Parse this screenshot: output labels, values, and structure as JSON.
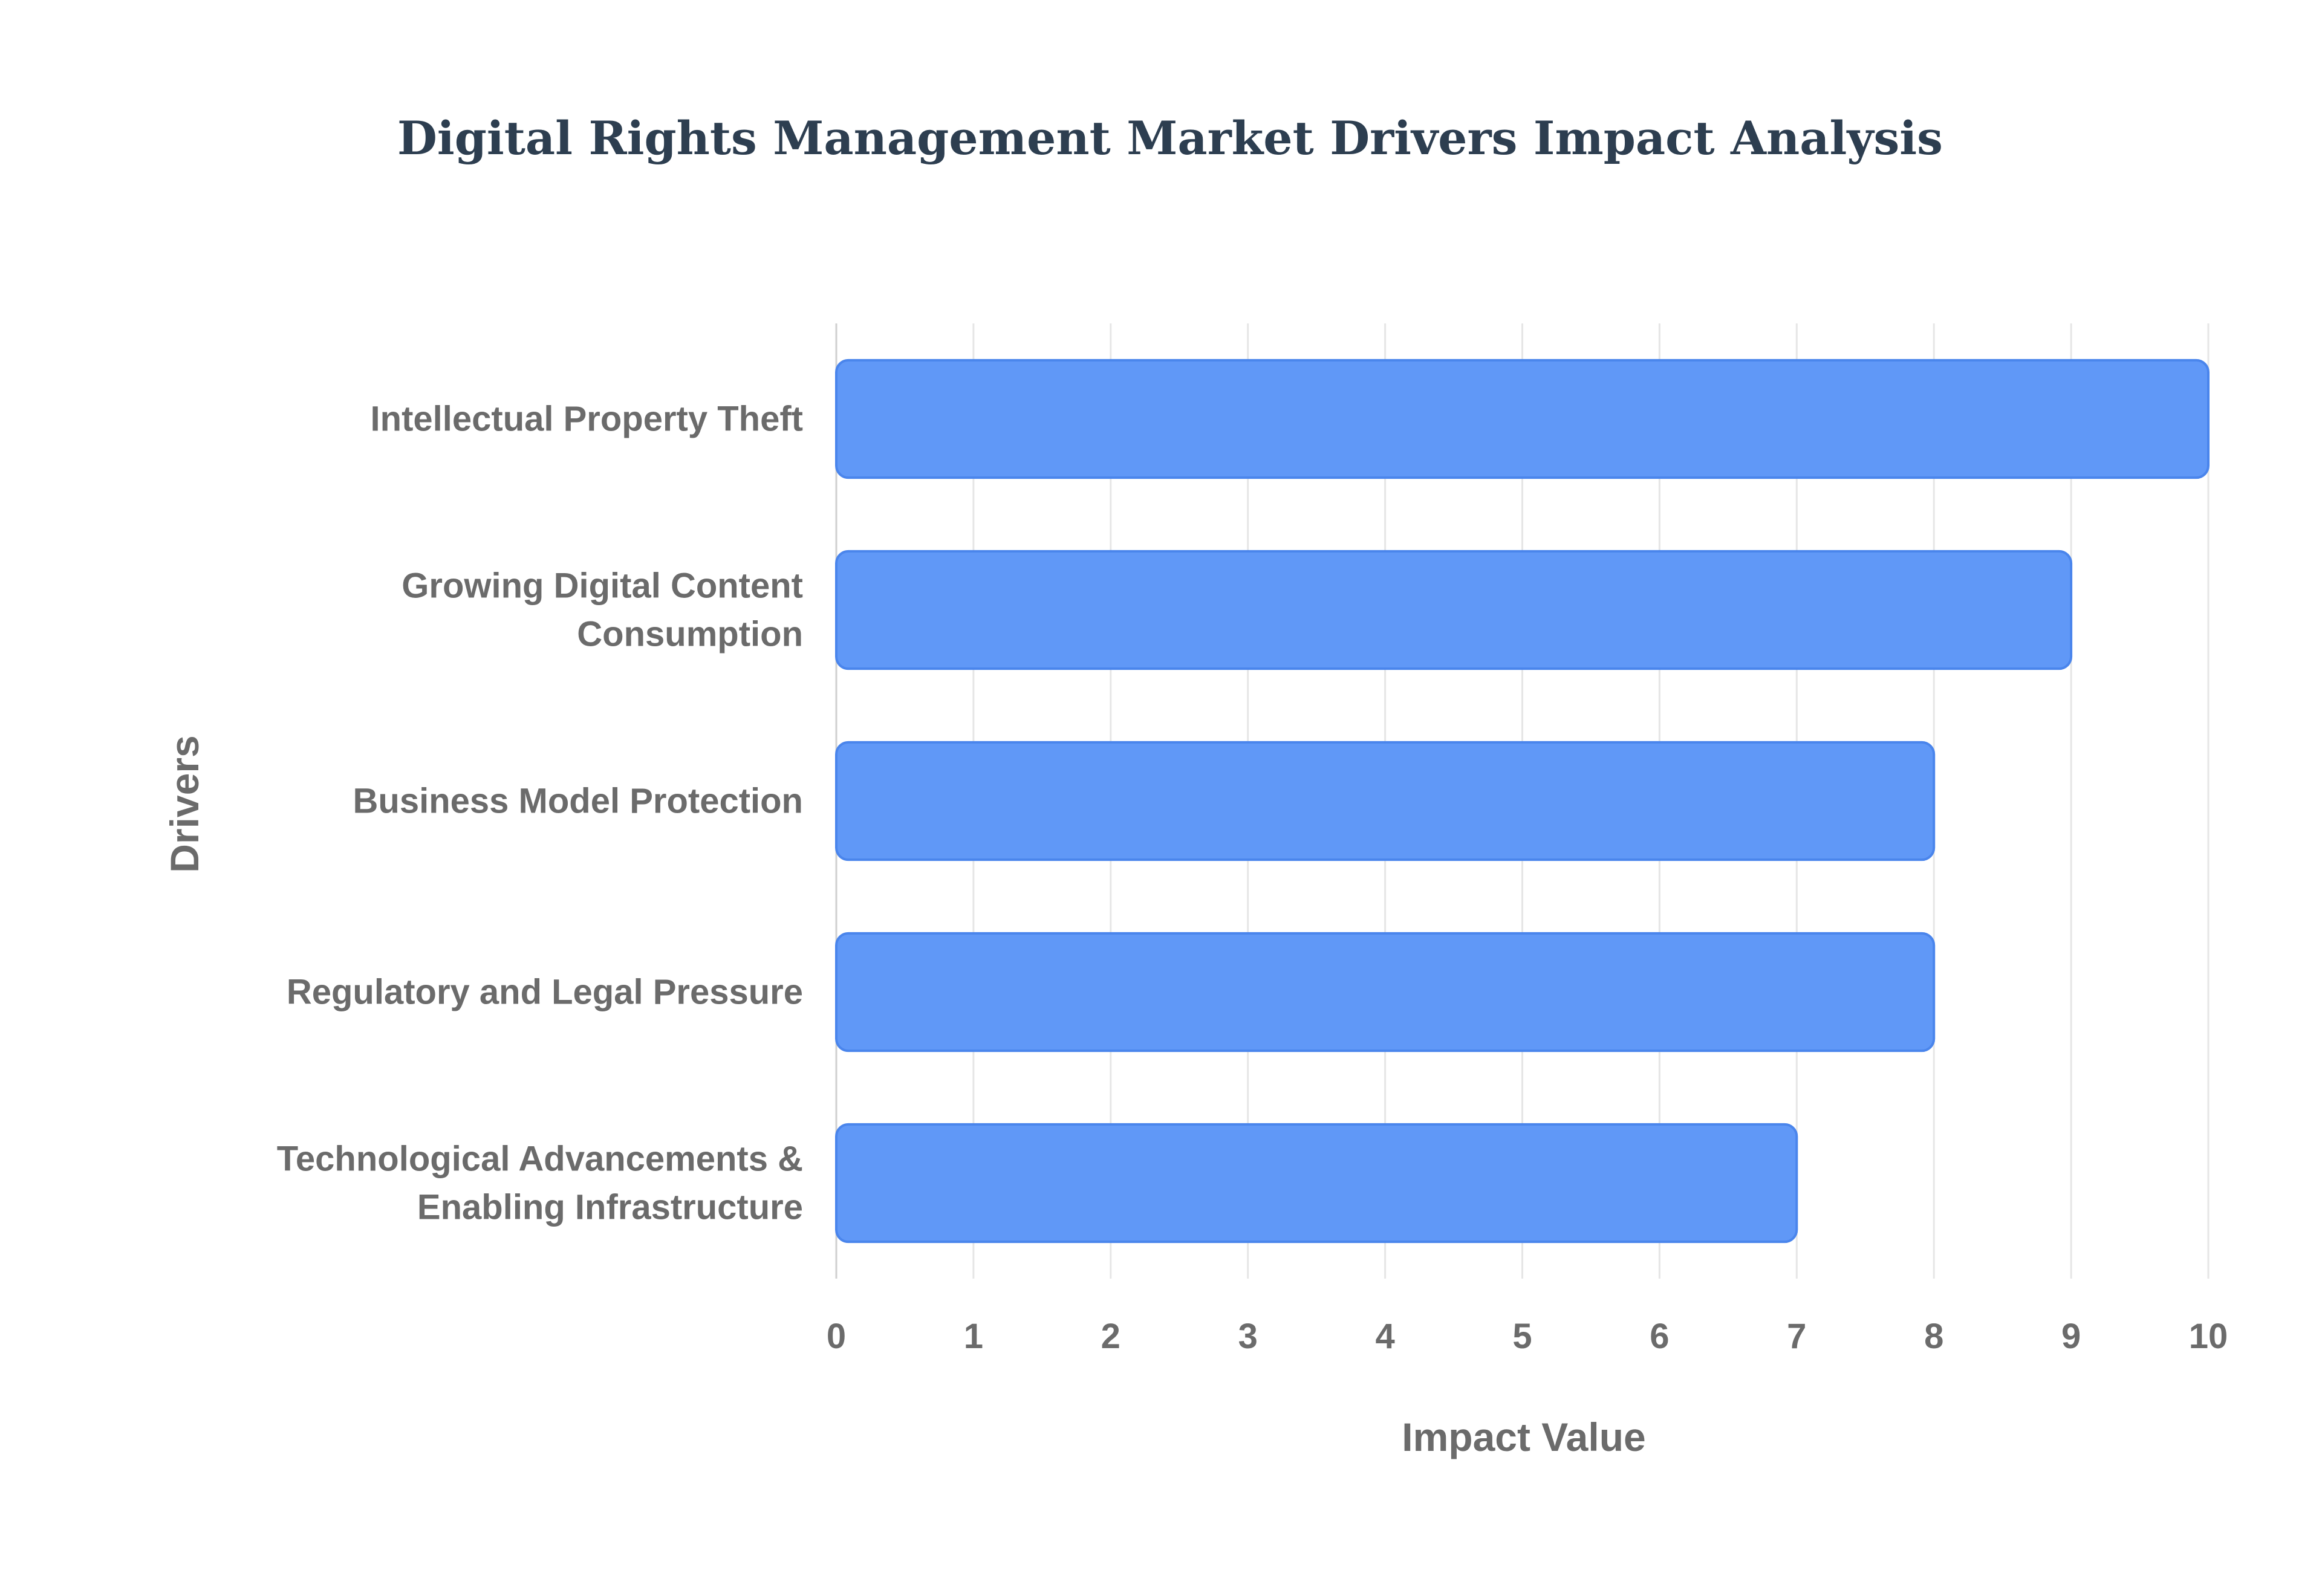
{
  "chart_data": {
    "type": "bar",
    "orientation": "horizontal",
    "title": "Digital Rights Management Market Drivers Impact Analysis",
    "xlabel": "Impact Value",
    "ylabel": "Drivers",
    "xlim": [
      0,
      10
    ],
    "xticks": [
      "0",
      "1",
      "2",
      "3",
      "4",
      "5",
      "6",
      "7",
      "8",
      "9",
      "10"
    ],
    "grid": true,
    "legend": "none",
    "bar_color": "#6098f7",
    "bar_edge_color": "#4a85ec",
    "categories": [
      [
        "Intellectual Property Theft"
      ],
      [
        "Growing Digital Content",
        "Consumption"
      ],
      [
        "Business Model Protection"
      ],
      [
        "Regulatory and Legal Pressure"
      ],
      [
        "Technological Advancements &",
        "Enabling Infrastructure"
      ]
    ],
    "values": [
      10,
      9,
      8,
      8,
      7
    ]
  }
}
